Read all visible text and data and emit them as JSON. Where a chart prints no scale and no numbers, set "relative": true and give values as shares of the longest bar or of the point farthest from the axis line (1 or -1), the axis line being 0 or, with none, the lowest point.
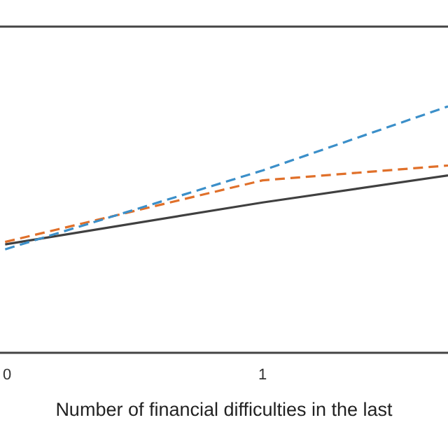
{
  "chart_data": {
    "type": "line",
    "relative": true,
    "xlabel": "Number of financial difficulties in the last",
    "x": [
      0,
      1,
      1.72
    ],
    "xlim": [
      -0.02,
      1.72
    ],
    "xticks": [
      0,
      1
    ],
    "series": [
      {
        "color": "#404040",
        "line_style": "solid",
        "values": [
          0.44,
          0.61,
          0.72
        ]
      },
      {
        "color": "#e0702a",
        "line_style": "dashed",
        "values": [
          0.45,
          0.7,
          0.76
        ]
      },
      {
        "color": "#3b8fc9",
        "line_style": "dashed",
        "values": [
          0.42,
          0.74,
          1
        ]
      }
    ]
  }
}
